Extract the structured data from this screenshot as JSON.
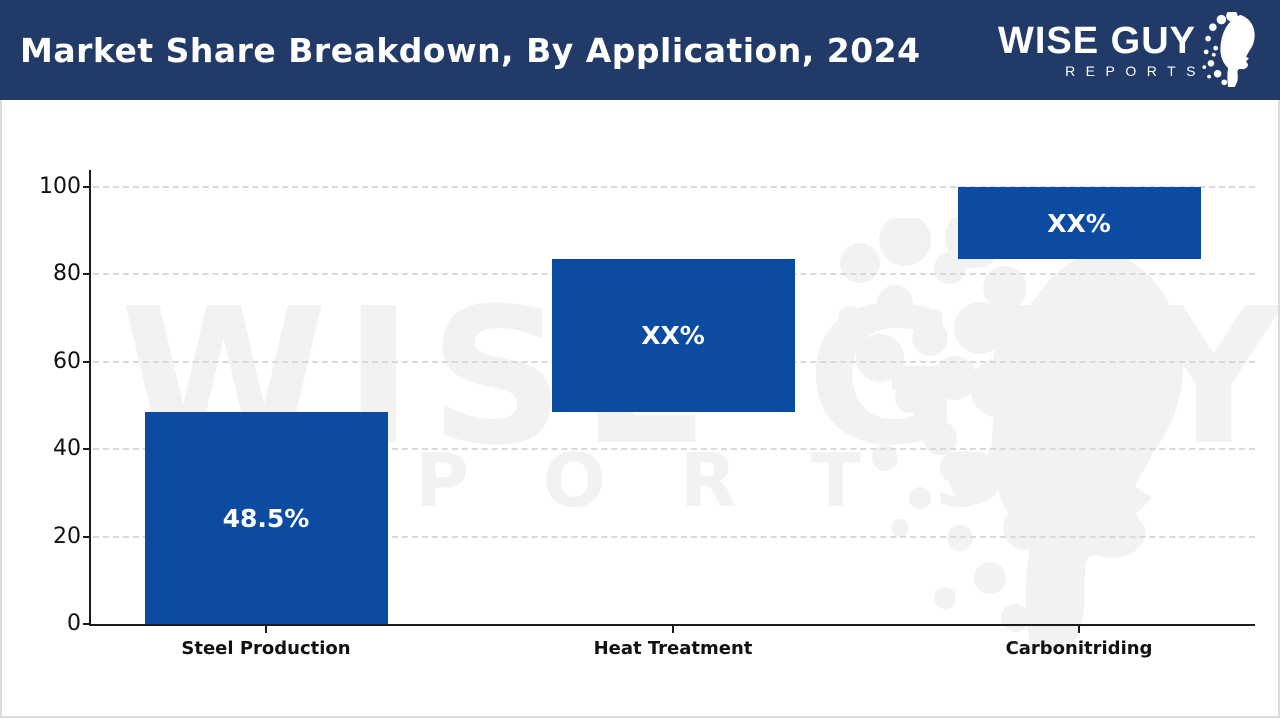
{
  "header": {
    "title": "Market Share Breakdown, By Application, 2024",
    "logo": {
      "line1": "WISE GUY",
      "line2": "REPORTS"
    }
  },
  "watermark": {
    "line1": "WISE GUY",
    "line2": "R E P O R T S"
  },
  "chart_data": {
    "type": "bar",
    "variant": "waterfall",
    "title": "Market Share Breakdown, By Application, 2024",
    "categories": [
      "Steel Production",
      "Heat Treatment",
      "Carbonitriding"
    ],
    "segments": [
      {
        "category": "Steel Production",
        "start": 0,
        "end": 48.5,
        "label": "48.5%"
      },
      {
        "category": "Heat Treatment",
        "start": 48.5,
        "end": 83.5,
        "label": "XX%"
      },
      {
        "category": "Carbonitriding",
        "start": 83.5,
        "end": 100,
        "label": "XX%"
      }
    ],
    "yticks": [
      0,
      20,
      40,
      60,
      80,
      100
    ],
    "ylim": [
      0,
      104
    ],
    "xlabel": "",
    "ylabel": "",
    "grid": "horizontal-dashed",
    "legend_position": "none",
    "colors": {
      "bar": "#0b4ca2",
      "bar_label": "#ffffff",
      "header_bg": "#213a67",
      "grid_line": "#d9d9d9",
      "axis": "#1c1c1c"
    }
  }
}
